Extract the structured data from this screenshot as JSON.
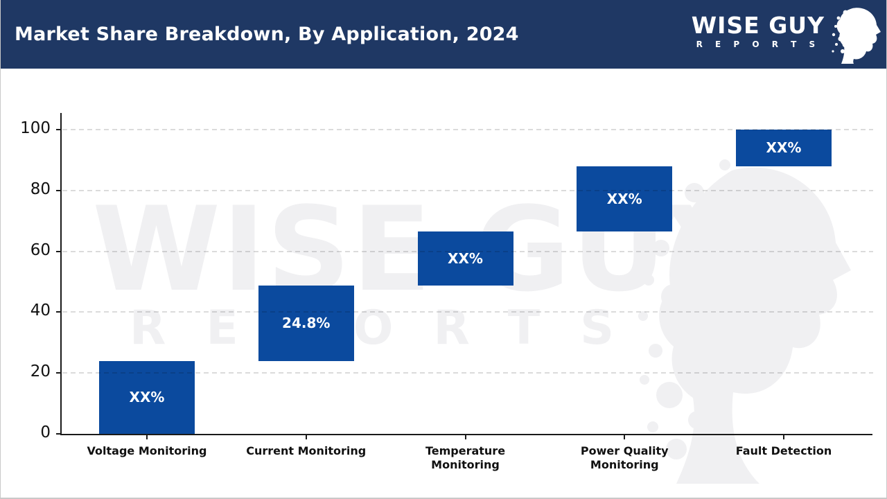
{
  "header": {
    "title": "Market Share Breakdown, By Application, 2024",
    "logo": {
      "line1": "WISE GUY",
      "line2": "R E P O R T S"
    }
  },
  "watermark": {
    "line1": "WISE GUY",
    "line2": "REPORTS"
  },
  "chart_data": {
    "type": "bar",
    "subtype": "floating-waterfall",
    "title": "Market Share Breakdown, By Application, 2024",
    "categories": [
      "Voltage Monitoring",
      "Current Monitoring",
      "Temperature Monitoring",
      "Power Quality Monitoring",
      "Fault Detection"
    ],
    "x_tick_lines": [
      [
        "Voltage Monitoring"
      ],
      [
        "Current Monitoring"
      ],
      [
        "Temperature",
        "Monitoring"
      ],
      [
        "Power Quality",
        "Monitoring"
      ],
      [
        "Fault Detection"
      ]
    ],
    "segments": [
      {
        "category": "Voltage Monitoring",
        "start": 0,
        "end": 24,
        "label": "XX%"
      },
      {
        "category": "Current Monitoring",
        "start": 24,
        "end": 48.8,
        "label": "24.8%"
      },
      {
        "category": "Temperature Monitoring",
        "start": 48.8,
        "end": 66.5,
        "label": "XX%"
      },
      {
        "category": "Power Quality Monitoring",
        "start": 66.5,
        "end": 88,
        "label": "XX%"
      },
      {
        "category": "Fault Detection",
        "start": 88,
        "end": 100,
        "label": "XX%"
      }
    ],
    "ylim": [
      0,
      100
    ],
    "yticks": [
      0,
      20,
      40,
      60,
      80,
      100
    ],
    "xlabel": "",
    "ylabel": "",
    "grid": {
      "axis": "y",
      "style": "dashed",
      "on": true
    },
    "legend": "none",
    "colors": {
      "bar": "#0b4a9e",
      "bar_label": "#ffffff",
      "header_bg": "#1f3864",
      "grid": "rgba(0,0,0,0.14)",
      "axis": "#1a1a1a",
      "watermark": "#f0f0f2"
    }
  }
}
